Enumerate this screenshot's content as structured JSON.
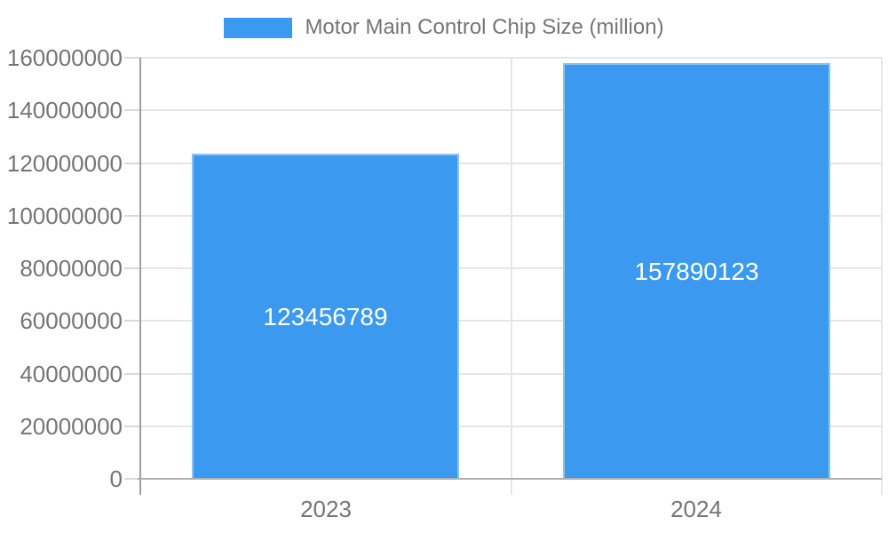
{
  "colors": {
    "bar": "#3B99EF",
    "bar_border": "#8CC2F5",
    "axis_text": "#757575",
    "grid_line": "#e6e6e6",
    "axis_line": "#9e9e9e",
    "baseline": "#b0b0b0",
    "tick_line": "#d9d9d9",
    "data_label": "#ffffff",
    "background": "#ffffff"
  },
  "chart_data": {
    "type": "bar",
    "title": "",
    "xlabel": "",
    "ylabel": "",
    "categories": [
      "2023",
      "2024"
    ],
    "series": [
      {
        "name": "Motor Main Control Chip Size (million)",
        "values": [
          123456789,
          157890123
        ]
      }
    ],
    "data_labels": [
      "123456789",
      "157890123"
    ],
    "ylim": [
      0,
      160000000
    ],
    "y_ticks": [
      0,
      20000000,
      40000000,
      60000000,
      80000000,
      100000000,
      120000000,
      140000000,
      160000000
    ],
    "y_tick_labels": [
      "0",
      "20000000",
      "40000000",
      "60000000",
      "80000000",
      "100000000",
      "120000000",
      "140000000",
      "160000000"
    ],
    "grid": true,
    "legend_position": "top"
  }
}
